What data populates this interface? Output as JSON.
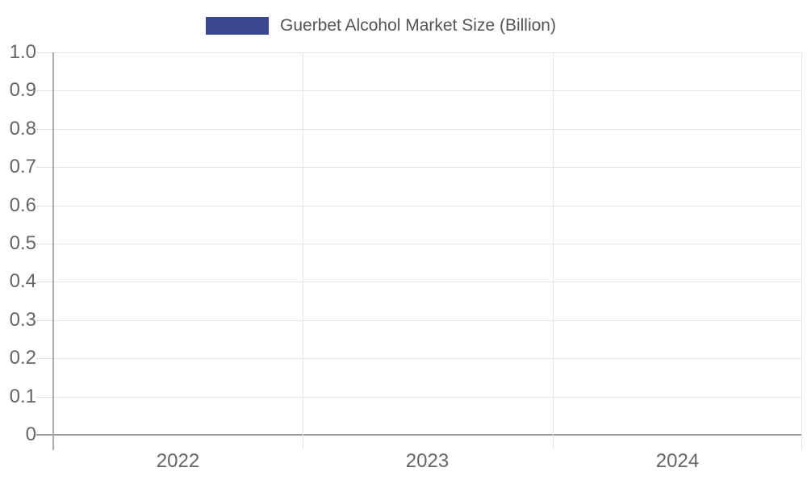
{
  "legend": {
    "label": "Guerbet Alcohol Market Size (Billion)",
    "swatch_color": "#3a478f"
  },
  "colors": {
    "series": "#3a478f",
    "gridline": "#e6e6e6",
    "tick_mark": "#e0e0e0",
    "axis_vertical": "#aaaaaa",
    "axis_zero": "#999999",
    "tick_label_text": "#666666",
    "legend_text": "#555555",
    "background": "#ffffff"
  },
  "chart_data": {
    "type": "bar",
    "title": "",
    "legend_position": "top-center",
    "legend_entries": [
      "Guerbet Alcohol Market Size (Billion)"
    ],
    "categories": [
      "2022",
      "2023",
      "2024"
    ],
    "series": [
      {
        "name": "Guerbet Alcohol Market Size (Billion)",
        "color": "#3a478f",
        "values": [
          null,
          null,
          null
        ]
      }
    ],
    "xlabel": "",
    "ylabel": "",
    "ylim": [
      0,
      1
    ],
    "yticks": [
      "1.0",
      "0.9",
      "0.8",
      "0.7",
      "0.6",
      "0.5",
      "0.4",
      "0.3",
      "0.2",
      "0.1",
      "0"
    ],
    "grid": true
  }
}
